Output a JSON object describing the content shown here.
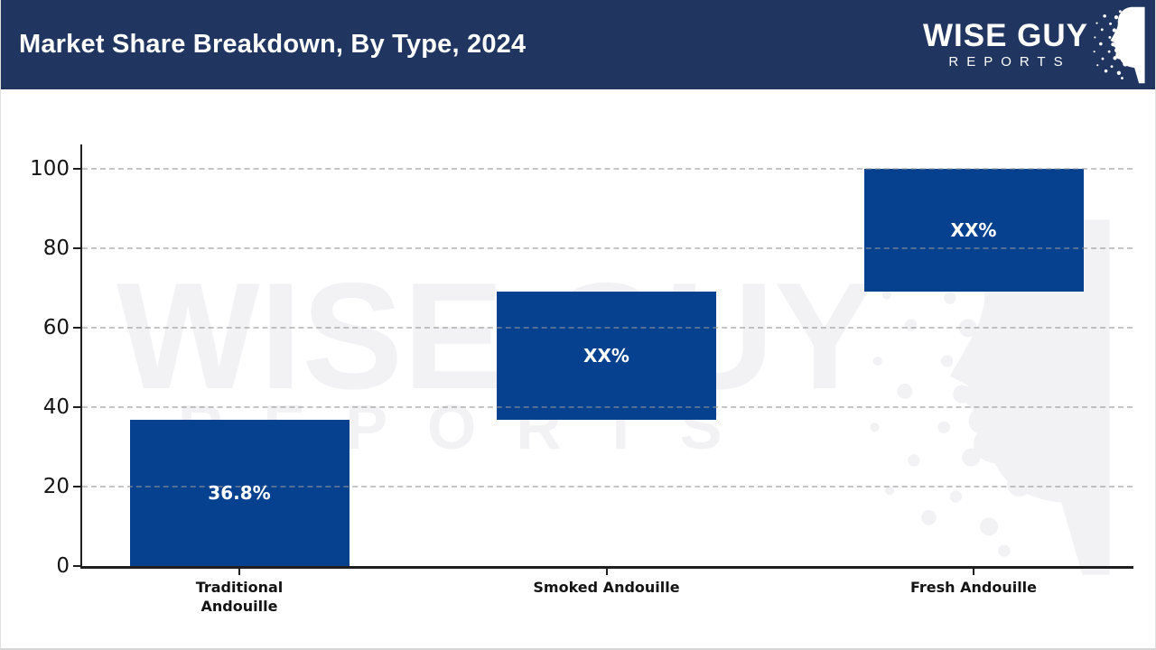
{
  "header": {
    "title": "Market Share Breakdown, By Type, 2024",
    "logo": {
      "line1": "WISE GUY",
      "line2": "REPORTS"
    }
  },
  "watermark": {
    "line1": "WISE GUY",
    "line2": "REPORTS"
  },
  "chart_data": {
    "type": "bar",
    "subtype": "floating-segment-waterfall",
    "title": "Market Share Breakdown, By Type, 2024",
    "categories": [
      "Traditional\nAndouille",
      "Smoked Andouille",
      "Fresh Andouille"
    ],
    "segments": [
      {
        "category": "Traditional Andouille",
        "start": 0,
        "end": 36.8,
        "label": "36.8%"
      },
      {
        "category": "Smoked Andouille",
        "start": 36.8,
        "end": 69,
        "label": "XX%"
      },
      {
        "category": "Fresh Andouille",
        "start": 69,
        "end": 100,
        "label": "XX%"
      }
    ],
    "ylim": [
      0,
      100
    ],
    "yticks": [
      0,
      20,
      40,
      60,
      80,
      100
    ],
    "xlabel": "",
    "ylabel": "",
    "grid": "horizontal-dashed",
    "legend": "none",
    "bar_color": "#05418f",
    "bar_label_color": "#ffffff"
  },
  "colors": {
    "header_bg": "#20355f",
    "bar": "#05418f",
    "axis": "#1f1f1f",
    "gridline": "#c9c9c9",
    "watermark": "#f2f2f4",
    "page_border": "#d9d9d9"
  }
}
